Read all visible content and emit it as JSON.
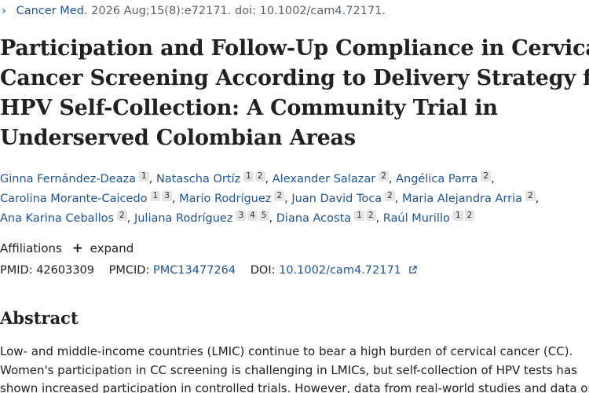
{
  "citation": {
    "journal": "Cancer Med.",
    "details": "2026 Aug;15(8):e72171. doi: 10.1002/cam4.72171."
  },
  "title_lines": [
    "Participation and Follow-Up Compliance in Cervical",
    "Cancer Screening According to Delivery Strategy for",
    "HPV Self-Collection: A Community Trial in",
    "Underserved Colombian Areas"
  ],
  "authors": [
    {
      "name": "Ginna Fernández-Deaza",
      "affils": [
        "1"
      ]
    },
    {
      "name": "Natascha Ortíz",
      "affils": [
        "1",
        "2"
      ]
    },
    {
      "name": "Alexander Salazar",
      "affils": [
        "2"
      ]
    },
    {
      "name": "Angélica Parra",
      "affils": [
        "2"
      ]
    },
    {
      "name": "Carolina Morante-Caicedo",
      "affils": [
        "1",
        "3"
      ]
    },
    {
      "name": "Mario Rodríguez",
      "affils": [
        "2"
      ]
    },
    {
      "name": "Juan David Toca",
      "affils": [
        "2"
      ]
    },
    {
      "name": "Maria Alejandra Arria",
      "affils": [
        "2"
      ]
    },
    {
      "name": "Ana Karina Ceballos",
      "affils": [
        "2"
      ]
    },
    {
      "name": "Juliana Rodríguez",
      "affils": [
        "3",
        "4",
        "5"
      ]
    },
    {
      "name": "Diana Acosta",
      "affils": [
        "1",
        "2"
      ]
    },
    {
      "name": "Raúl Murillo",
      "affils": [
        "1",
        "2"
      ]
    }
  ],
  "affiliations": {
    "label": "Affiliations",
    "expand_label": "expand"
  },
  "identifiers": {
    "pmid_label": "PMID:",
    "pmid": "42603309",
    "pmcid_label": "PMCID:",
    "pmcid": "PMC13477264",
    "doi_label": "DOI:",
    "doi": "10.1002/cam4.72171"
  },
  "abstract": {
    "heading": "Abstract",
    "lines": [
      "Low- and middle-income countries (LMIC) continue to bear a high burden of cervical cancer (CC).",
      "Women's participation in CC screening is challenging in LMICs, but self-collection of HPV tests has",
      "shown increased participation in controlled trials. However, data from real-world studies and data on"
    ]
  },
  "colors": {
    "link": "#205493",
    "text": "#212121",
    "muted": "#5b616b",
    "badge_bg": "#e4e4e4"
  },
  "icons": {
    "citation_chevron": "chevron-right-icon",
    "expand": "plus-icon",
    "doi_external": "external-link-icon"
  }
}
